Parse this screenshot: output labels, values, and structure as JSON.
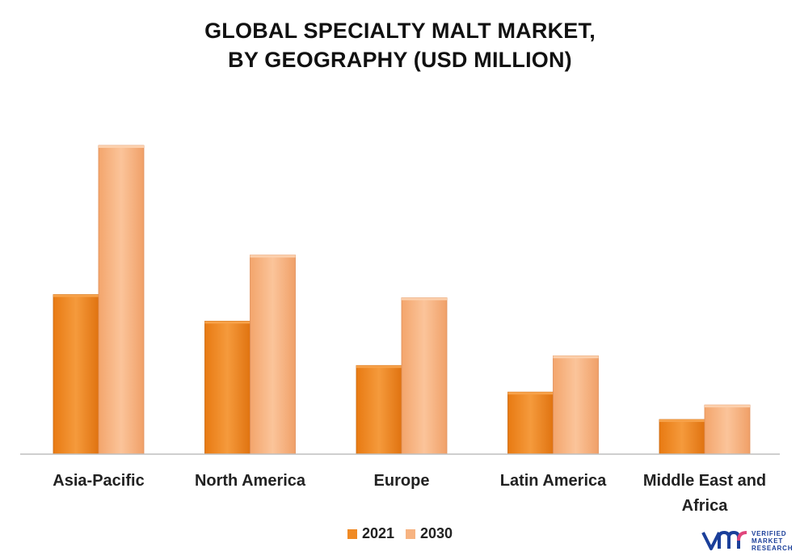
{
  "title_line1": "GLOBAL SPECIALTY MALT MARKET,",
  "title_line2": "BY GEOGRAPHY (USD MILLION)",
  "colors": {
    "series_2021": "#f08a24",
    "series_2030": "#f7b381",
    "axis": "#bfbfbf"
  },
  "chart_data": {
    "type": "bar",
    "categories": [
      "Asia-Pacific",
      "North America",
      "Europe",
      "Latin America",
      "Middle East and Africa"
    ],
    "series": [
      {
        "name": "2021",
        "values": [
          198,
          165,
          110,
          77,
          43
        ]
      },
      {
        "name": "2030",
        "values": [
          383,
          247,
          194,
          122,
          61
        ]
      }
    ],
    "ylim": [
      0,
      420
    ],
    "grid": false,
    "legend_position": "bottom"
  },
  "legend": {
    "item_2021": "2021",
    "item_2030": "2030"
  },
  "logo": {
    "line1": "VERIFIED",
    "line2": "MARKET",
    "line3": "RESEARCH",
    "icon": "vmr-logo-icon"
  }
}
